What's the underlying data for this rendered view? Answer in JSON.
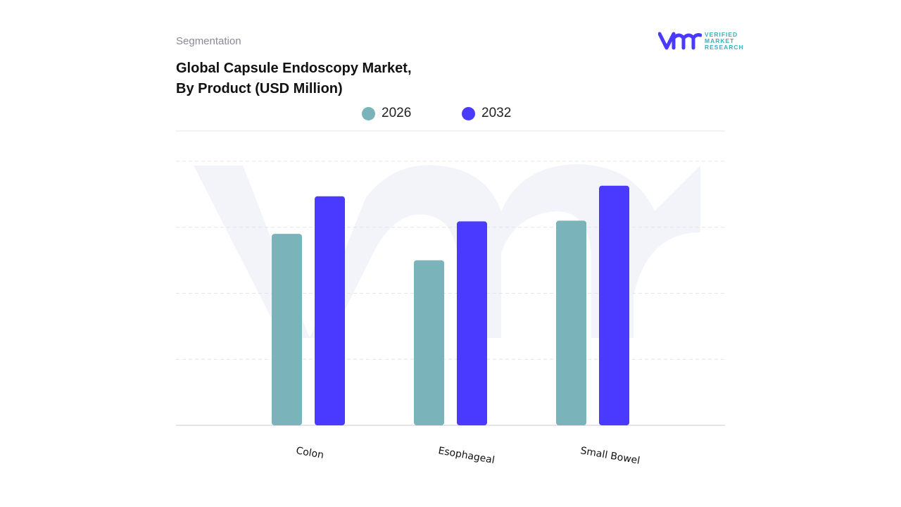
{
  "header": {
    "segment_label": "Segmentation",
    "title_line1": "Global Capsule Endoscopy Market,",
    "title_line2": "By Product (USD Million)"
  },
  "logo": {
    "line1": "VERIFIED",
    "line2": "MARKET",
    "line3": "RESEARCH",
    "mark": "vmr"
  },
  "colors": {
    "series_2026": "#7ab3ba",
    "series_2032": "#4a3aff",
    "grid": "#e4e4ea",
    "watermark": "#f3f3fa"
  },
  "chart_data": {
    "type": "bar",
    "categories": [
      "Colon",
      "Esophageal",
      "Small Bowel"
    ],
    "series": [
      {
        "name": "2026",
        "values": [
          2.9,
          2.5,
          3.1
        ]
      },
      {
        "name": "2032",
        "values": [
          3.47,
          3.09,
          3.63
        ]
      }
    ],
    "ylim": [
      0,
      4
    ],
    "grid": true,
    "legend_position": "top",
    "y_tick_labels_shown": false
  }
}
